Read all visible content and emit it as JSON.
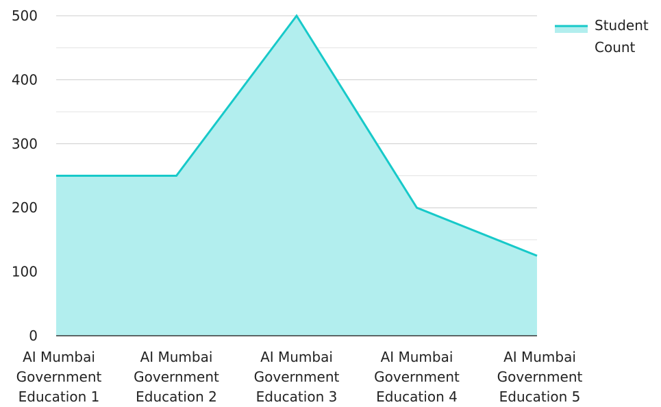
{
  "chart_data": {
    "type": "area",
    "categories": [
      [
        "AI Mumbai",
        "Government",
        "Education 1"
      ],
      [
        "AI Mumbai",
        "Government",
        "Education 2"
      ],
      [
        "AI Mumbai",
        "Government",
        "Education 3"
      ],
      [
        "AI Mumbai",
        "Government",
        "Education 4"
      ],
      [
        "AI Mumbai",
        "Government",
        "Education 5"
      ]
    ],
    "series": [
      {
        "name": [
          "Student",
          "Count"
        ],
        "values": [
          250,
          250,
          500,
          200,
          125
        ]
      }
    ],
    "yticks": [
      "0",
      "100",
      "200",
      "300",
      "400",
      "500"
    ],
    "ylim": [
      0,
      500
    ],
    "grid": true,
    "legend_position": "top-right",
    "colors": {
      "line": "#17c9c9",
      "fill": "#b2eeee",
      "grid": "#cccccc",
      "axis": "#333333"
    }
  }
}
